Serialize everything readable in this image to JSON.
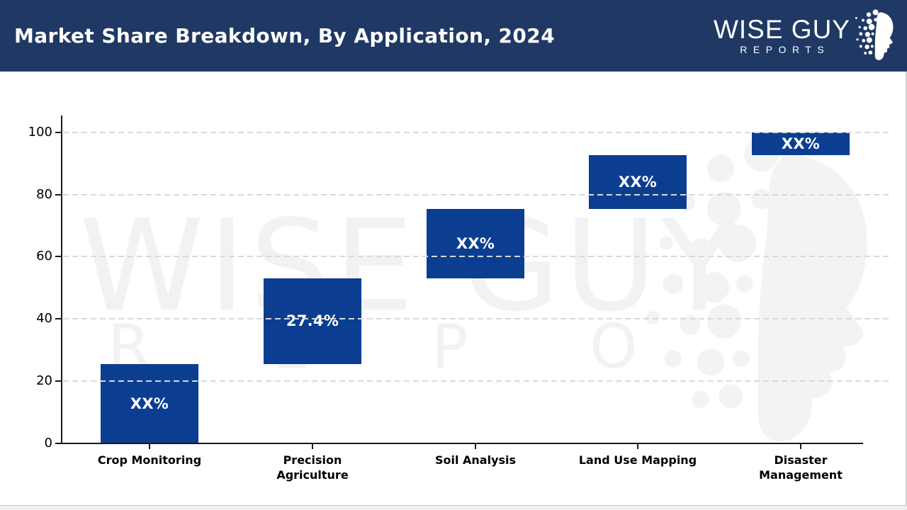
{
  "header": {
    "title": "Market Share Breakdown, By Application, 2024",
    "bg_color": "#1f3864",
    "logo": {
      "line1": "WISE GUY",
      "line2": "REPORTS"
    }
  },
  "watermark": {
    "line1": "WISE GUY",
    "line2": "REPORTS_SPACED",
    "line2_display": "R E P O R T S"
  },
  "chart_data": {
    "type": "bar",
    "subtype": "waterfall",
    "title": "Market Share Breakdown, By Application, 2024",
    "xlabel": "",
    "ylabel": "",
    "categories": [
      "Crop Monitoring",
      "Precision Agriculture",
      "Soil Analysis",
      "Land Use Mapping",
      "Disaster Management"
    ],
    "category_display": [
      "Crop Monitoring",
      "Precision\nAgriculture",
      "Soil Analysis",
      "Land Use Mapping",
      "Disaster\nManagement"
    ],
    "values": [
      25.6,
      27.4,
      22.4,
      17.2,
      7.4
    ],
    "starts": [
      0,
      25.6,
      53.0,
      75.4,
      92.6
    ],
    "bar_labels": [
      "XX%",
      "27.4%",
      "XX%",
      "XX%",
      "XX%"
    ],
    "y_ticks": [
      0,
      20,
      40,
      60,
      80,
      100
    ],
    "ylim": [
      0,
      105
    ],
    "grid": "horizontal-dashed",
    "grid_color": "#d9d9d9",
    "bar_color": "#0b3e90",
    "legend": "none"
  }
}
